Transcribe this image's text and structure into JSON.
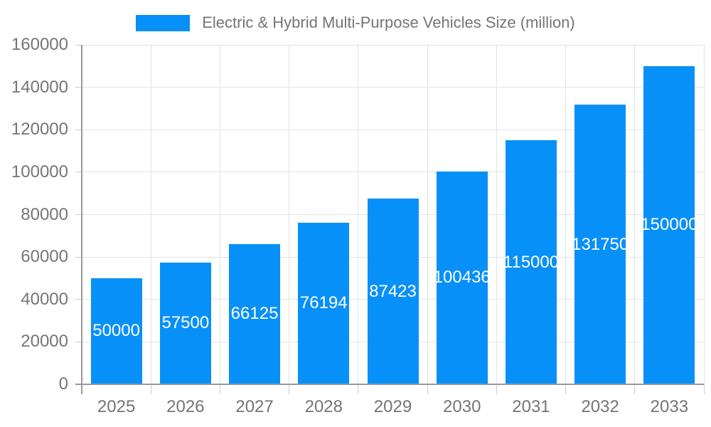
{
  "legend": {
    "label": "Electric & Hybrid Multi-Purpose Vehicles Size (million)"
  },
  "colors": {
    "bar": "#0890f9",
    "text": "#757575",
    "bar_label_text": "#ffffff",
    "grid": "#e3e3e3",
    "axis": "#999999",
    "tick": "#cccccc",
    "background": "#ffffff"
  },
  "chart_data": {
    "type": "bar",
    "title": "Electric & Hybrid Multi-Purpose Vehicles Size (million)",
    "xlabel": "",
    "ylabel": "",
    "categories": [
      "2025",
      "2026",
      "2027",
      "2028",
      "2029",
      "2030",
      "2031",
      "2032",
      "2033"
    ],
    "values": [
      50000,
      57500,
      66125,
      76194,
      87423,
      100436,
      115000,
      131750,
      150000
    ],
    "bar_value_labels": [
      "50000",
      "57500",
      "66125",
      "76194",
      "87423",
      "100436",
      "115000",
      "131750",
      "150000"
    ],
    "ylim": [
      0,
      160000
    ],
    "yticks": [
      0,
      20000,
      40000,
      60000,
      80000,
      100000,
      120000,
      140000,
      160000
    ],
    "ytick_labels": [
      "0",
      "20000",
      "40000",
      "60000",
      "80000",
      "100000",
      "120000",
      "140000",
      "160000"
    ],
    "grid": true,
    "legend_position": "top",
    "bar_label_position": "center-inside-clipped"
  }
}
